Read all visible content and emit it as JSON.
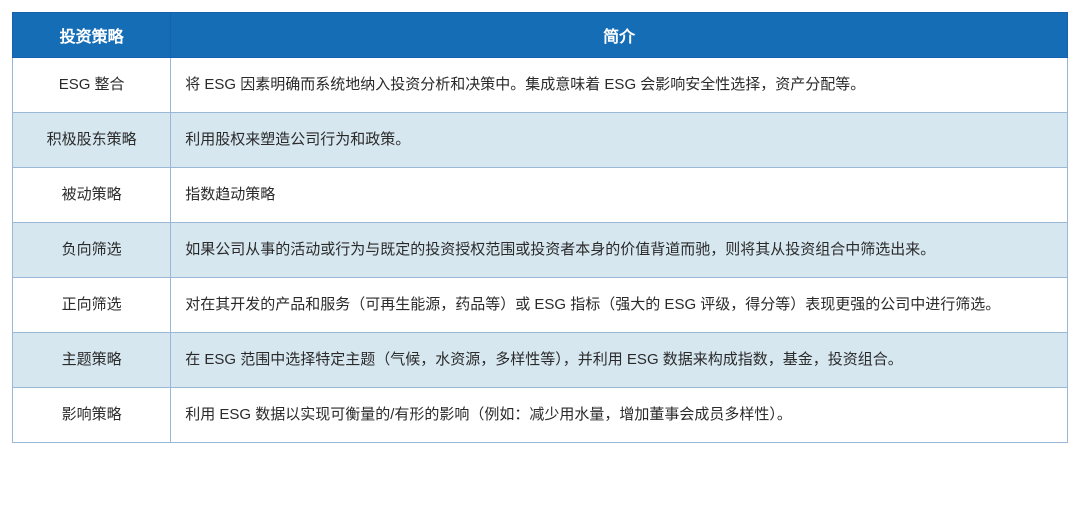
{
  "table": {
    "header_bg": "#156db6",
    "header_border": "#1560b3",
    "cell_border": "#9bb7d6",
    "alt_row_bg": "#d6e7f0",
    "columns": [
      {
        "key": "strategy",
        "label": "投资策略",
        "width": "15%"
      },
      {
        "key": "intro",
        "label": "简介",
        "width": "85%"
      }
    ],
    "rows": [
      {
        "strategy": "ESG 整合",
        "intro": "将 ESG 因素明确而系统地纳入投资分析和决策中。集成意味着 ESG 会影响安全性选择，资产分配等。",
        "alt": false
      },
      {
        "strategy": "积极股东策略",
        "intro": "利用股权来塑造公司行为和政策。",
        "alt": true
      },
      {
        "strategy": "被动策略",
        "intro": "指数趋动策略",
        "alt": false
      },
      {
        "strategy": "负向筛选",
        "intro": "如果公司从事的活动或行为与既定的投资授权范围或投资者本身的价值背道而驰，则将其从投资组合中筛选出来。",
        "alt": true
      },
      {
        "strategy": "正向筛选",
        "intro": "对在其开发的产品和服务（可再生能源，药品等）或 ESG 指标（强大的 ESG 评级，得分等）表现更强的公司中进行筛选。",
        "alt": false
      },
      {
        "strategy": "主题策略",
        "intro": "在 ESG 范围中选择特定主题（气候，水资源，多样性等），并利用 ESG 数据来构成指数，基金，投资组合。",
        "alt": true
      },
      {
        "strategy": "影响策略",
        "intro": "利用 ESG 数据以实现可衡量的/有形的影响（例如：减少用水量，增加董事会成员多样性）。",
        "alt": false
      }
    ]
  }
}
